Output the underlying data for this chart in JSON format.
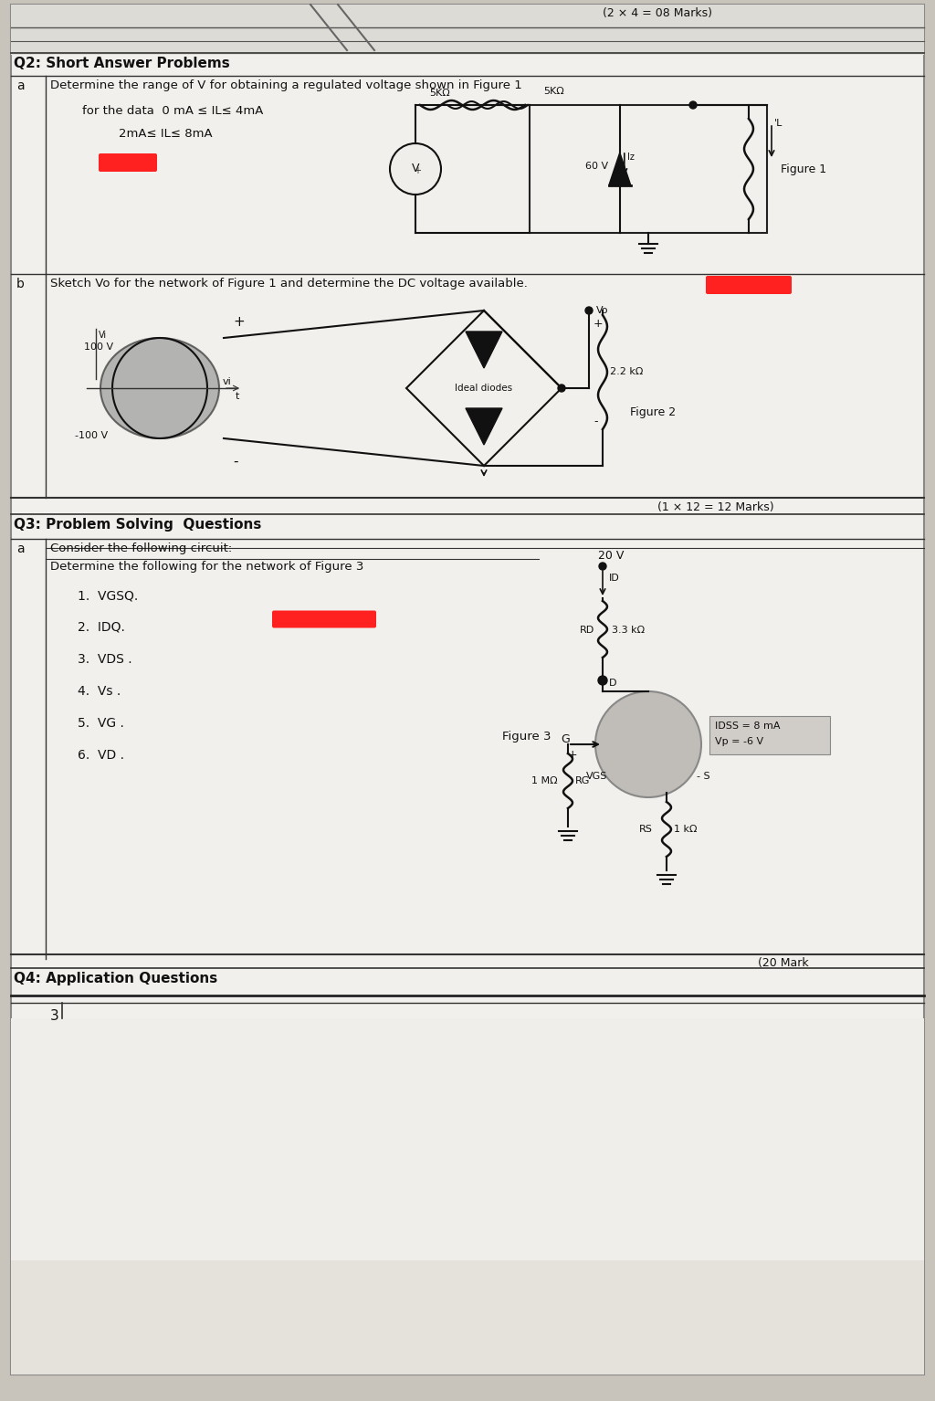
{
  "bg_color_top": "#c8c4bc",
  "bg_color_paper": "#e8e6e0",
  "paper_color": "#f2f0ec",
  "header_marks": "(2 × 4 = 08 Marks)",
  "q2_title": "Q2: Short Answer Problems",
  "q2a_text1": "Determine the range of V for obtaining a regulated voltage shown in Figure 1",
  "q2a_label": "a",
  "q2a_data1": "for the data  0 mA ≤ IL≤ 4mA",
  "q2a_data2": "2mA≤ IL≤ 8mA",
  "fig1_label": "Figure 1",
  "fig1_R": "5KΩ",
  "fig1_V": "60 V",
  "q2b_label": "b",
  "q2b_text": "Sketch Vo for the network of Figure 1 and determine the DC voltage available.",
  "fig2_label": "Figure 2",
  "fig2_v1": "100 V",
  "fig2_vm": "-100 V",
  "fig2_diodes": "Ideal diodes",
  "fig2_R": "2.2 kΩ",
  "marks2": "(1 × 12 = 12 Marks)",
  "q3_title": "Q3: Problem Solving  Questions",
  "q3a_intro": "Consider the following circuit:",
  "q3a_label": "a",
  "q3a_text": "Determine the following for the network of Figure 3",
  "q3_item1": "1.  VGSQ.",
  "q3_item2": "2.  IDQ.",
  "q3_item3": "3.  VDS .",
  "q3_item4": "4.  Vs .",
  "q3_item5": "5.  VG .",
  "q3_item6": "6.  VD .",
  "fig3_label": "Figure 3",
  "fig3_VDD": "20 V",
  "fig3_RD": "3.3 kΩ",
  "fig3_ID": "ID",
  "fig3_RDlabel": "RD",
  "fig3_IDSS": "IDSS = 8 mA",
  "fig3_Vp": "Vp = -6 V",
  "fig3_VGS": "VGS",
  "fig3_S": "S",
  "fig3_G": "G",
  "fig3_D": "D",
  "fig3_RG": "1 MΩ",
  "fig3_RGlabel": "RG",
  "fig3_RS": "1 kΩ",
  "fig3_RSlabel": "RS",
  "q3_marks": "(20 Mark",
  "q4_title": "Q4: Application Questions",
  "page_num": "3"
}
